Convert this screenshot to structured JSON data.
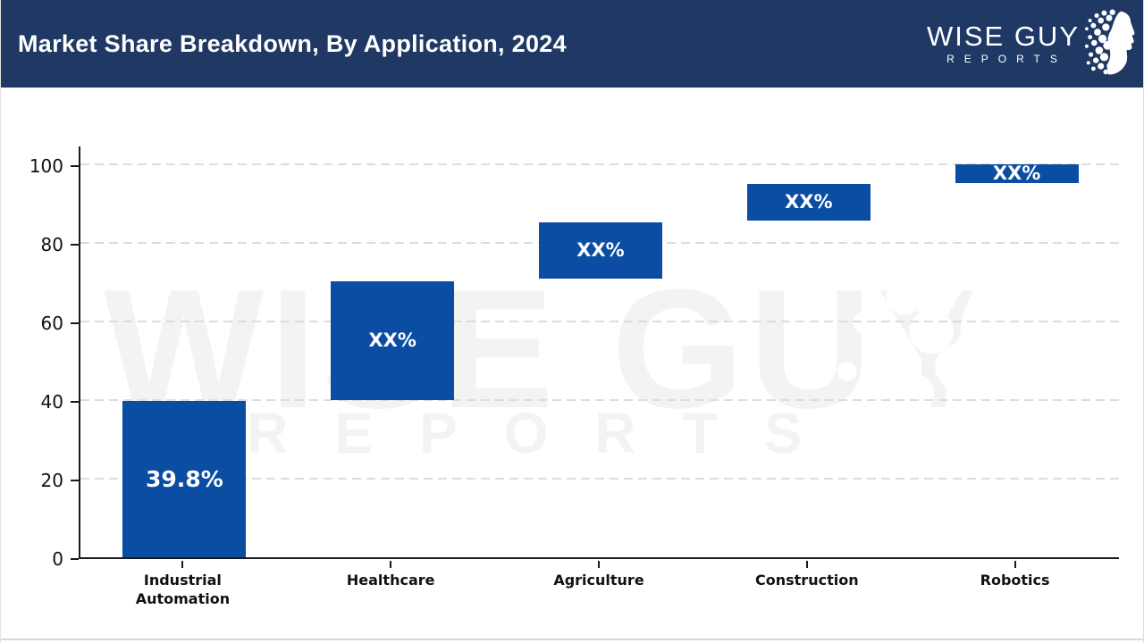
{
  "header": {
    "title": "Market Share Breakdown, By Application, 2024",
    "background_color": "#1f3864",
    "text_color": "#ffffff",
    "brand": {
      "line1": "WISE GUY",
      "line2": "REPORTS"
    }
  },
  "watermark": {
    "line1": "WISE GUY",
    "line2": "REPORTS"
  },
  "chart_data": {
    "type": "bar",
    "subtype": "waterfall",
    "title": "Market Share Breakdown, By Application, 2024",
    "xlabel": "",
    "ylabel": "",
    "categories": [
      "Industrial Automation",
      "Healthcare",
      "Agriculture",
      "Construction",
      "Robotics"
    ],
    "segments": [
      {
        "category": "Industrial Automation",
        "start": 0,
        "end": 39.8,
        "label": "39.8%"
      },
      {
        "category": "Healthcare",
        "start": 40,
        "end": 70.2,
        "label": "XX%"
      },
      {
        "category": "Agriculture",
        "start": 70.9,
        "end": 85.2,
        "label": "XX%"
      },
      {
        "category": "Construction",
        "start": 85.7,
        "end": 94.9,
        "label": "XX%"
      },
      {
        "category": "Robotics",
        "start": 95.3,
        "end": 100,
        "label": "XX%"
      }
    ],
    "yticks": [
      0,
      20,
      40,
      60,
      80,
      100
    ],
    "ylim": [
      0,
      105
    ],
    "grid": "dashed-horizontal",
    "legend": "none",
    "bar_color": "#0b4da2",
    "bar_label_color": "#ffffff",
    "gridline_color": "#dcdcdc",
    "axis_color": "#1a1a1a"
  }
}
